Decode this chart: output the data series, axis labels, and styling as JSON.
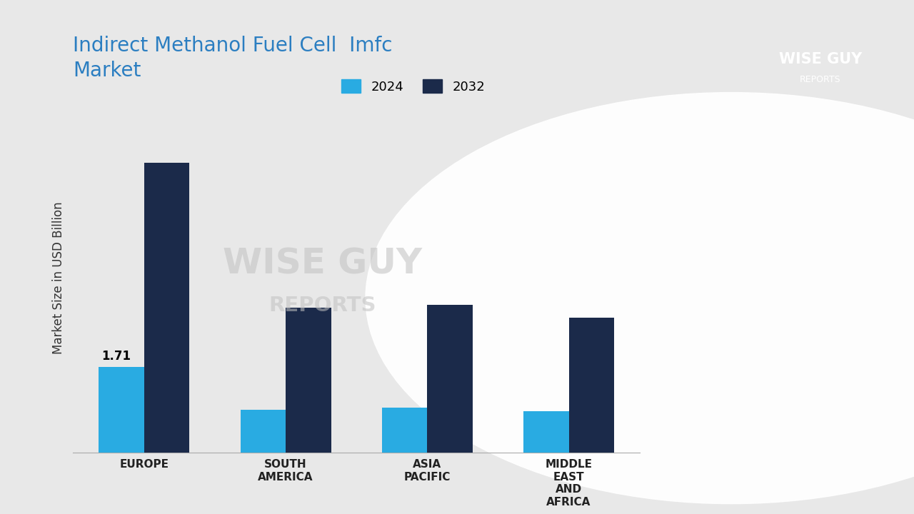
{
  "title": "Indirect Methanol Fuel Cell  Imfc\nMarket",
  "ylabel": "Market Size in USD Billion",
  "categories": [
    "EUROPE",
    "SOUTH\nAMERICA",
    "ASIA\nPACIFIC",
    "MIDDLE\nEAST\nAND\nAFRICA"
  ],
  "values_2024": [
    1.71,
    0.85,
    0.9,
    0.82
  ],
  "values_2032": [
    5.8,
    2.9,
    2.95,
    2.7
  ],
  "color_2024": "#29ABE2",
  "color_2032": "#1B2A4A",
  "annotation_text": "1.71",
  "background_color": "#E8E8E8",
  "right_panel_color": "#1B2A4A",
  "legend_labels": [
    "2024",
    "2032"
  ],
  "title_color": "#2B7EC1",
  "ylabel_color": "#333333",
  "bar_width": 0.32,
  "ylim": [
    0,
    7.0
  ]
}
